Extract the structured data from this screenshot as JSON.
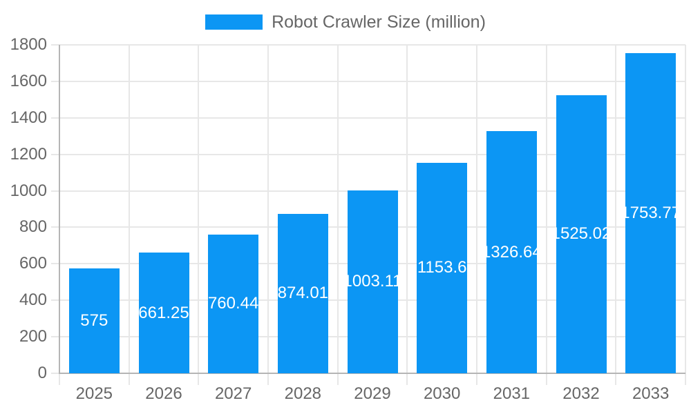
{
  "chart_data": {
    "type": "bar",
    "legend_label": "Robot Crawler Size (million)",
    "legend_position": "top-center",
    "categories": [
      "2025",
      "2026",
      "2027",
      "2028",
      "2029",
      "2030",
      "2031",
      "2032",
      "2033"
    ],
    "values": [
      575,
      661.25,
      760.44,
      874.01,
      1003.11,
      1153.6,
      1326.64,
      1525.02,
      1753.77
    ],
    "value_labels": [
      "575",
      "661.25",
      "760.44",
      "874.01",
      "1003.11",
      "1153.6",
      "1326.64",
      "1525.02",
      "1753.77"
    ],
    "series": [
      {
        "name": "Robot Crawler Size (million)",
        "values": [
          575,
          661.25,
          760.44,
          874.01,
          1003.11,
          1153.6,
          1326.64,
          1525.02,
          1753.77
        ]
      }
    ],
    "xlabel": "",
    "ylabel": "",
    "ylim": [
      0,
      1800
    ],
    "ytick_step": 200,
    "yticks": [
      0,
      200,
      400,
      600,
      800,
      1000,
      1200,
      1400,
      1600,
      1800
    ],
    "grid": true,
    "colors": {
      "bar": "#0c96f4",
      "bar_label_text": "#ffffff",
      "axis_text": "#666666",
      "grid_line": "#e7e7e7",
      "axis_line": "#b5b5b5",
      "background": "#ffffff"
    }
  }
}
